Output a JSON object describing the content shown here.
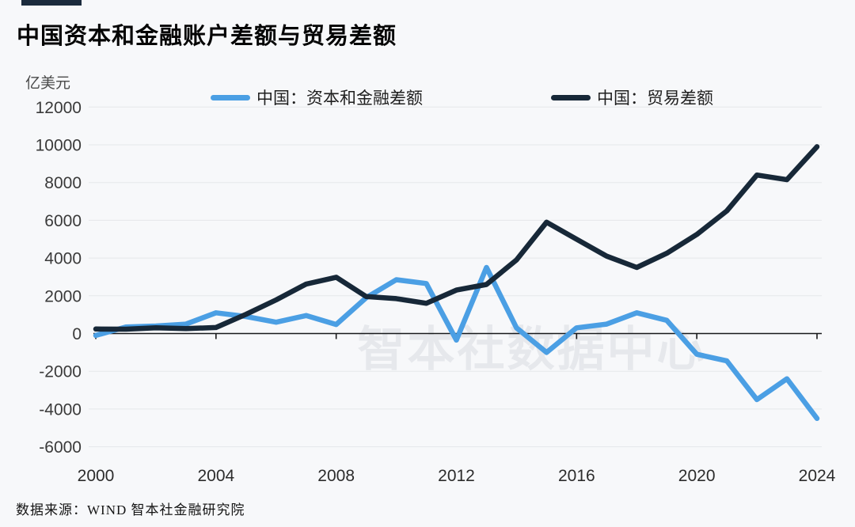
{
  "header": {
    "title": "中国资本和金融账户差额与贸易差额"
  },
  "y_axis": {
    "unit": "亿美元",
    "ticks": [
      12000,
      10000,
      8000,
      6000,
      4000,
      2000,
      0,
      -2000,
      -4000,
      -6000
    ]
  },
  "x_axis": {
    "ticks": [
      2000,
      2004,
      2008,
      2012,
      2016,
      2020,
      2024
    ]
  },
  "legend": [
    {
      "label": "中国：资本和金融差额",
      "color": "#4b9fe4"
    },
    {
      "label": "中国：贸易差额",
      "color": "#172838"
    }
  ],
  "watermark": "智本社数据中心",
  "source": "数据来源：WIND 智本社金融研究院",
  "colors": {
    "background": "#f7f8fa",
    "accent_bar": "#1b2b3d",
    "gridline": "#e5e7ea",
    "zero_axis": "#17181a",
    "capital_line": "#4b9fe4",
    "trade_line": "#172838",
    "watermark": "#e6e8ec"
  },
  "chart_data": {
    "type": "line",
    "title": "中国资本和金融账户差额与贸易差额",
    "ylabel": "亿美元",
    "ylim": [
      -6000,
      12000
    ],
    "grid": true,
    "legend_position": "top",
    "x": [
      2000,
      2001,
      2002,
      2003,
      2004,
      2005,
      2006,
      2007,
      2008,
      2009,
      2010,
      2011,
      2012,
      2013,
      2014,
      2015,
      2016,
      2017,
      2018,
      2019,
      2020,
      2021,
      2022,
      2023,
      2024
    ],
    "series": [
      {
        "name": "中国：资本和金融差额",
        "color": "#4b9fe4",
        "values": [
          -100,
          350,
          400,
          500,
          1100,
          900,
          600,
          950,
          480,
          1900,
          2850,
          2650,
          -350,
          3500,
          300,
          -1000,
          300,
          500,
          1100,
          700,
          -1100,
          -1450,
          -3500,
          -2400,
          -4500
        ]
      },
      {
        "name": "中国：贸易差额",
        "color": "#172838",
        "values": [
          240,
          230,
          300,
          260,
          320,
          1020,
          1780,
          2620,
          2980,
          1960,
          1850,
          1600,
          2300,
          2600,
          3900,
          5900,
          5000,
          4100,
          3500,
          4250,
          5250,
          6500,
          8400,
          8150,
          9900
        ]
      }
    ]
  }
}
